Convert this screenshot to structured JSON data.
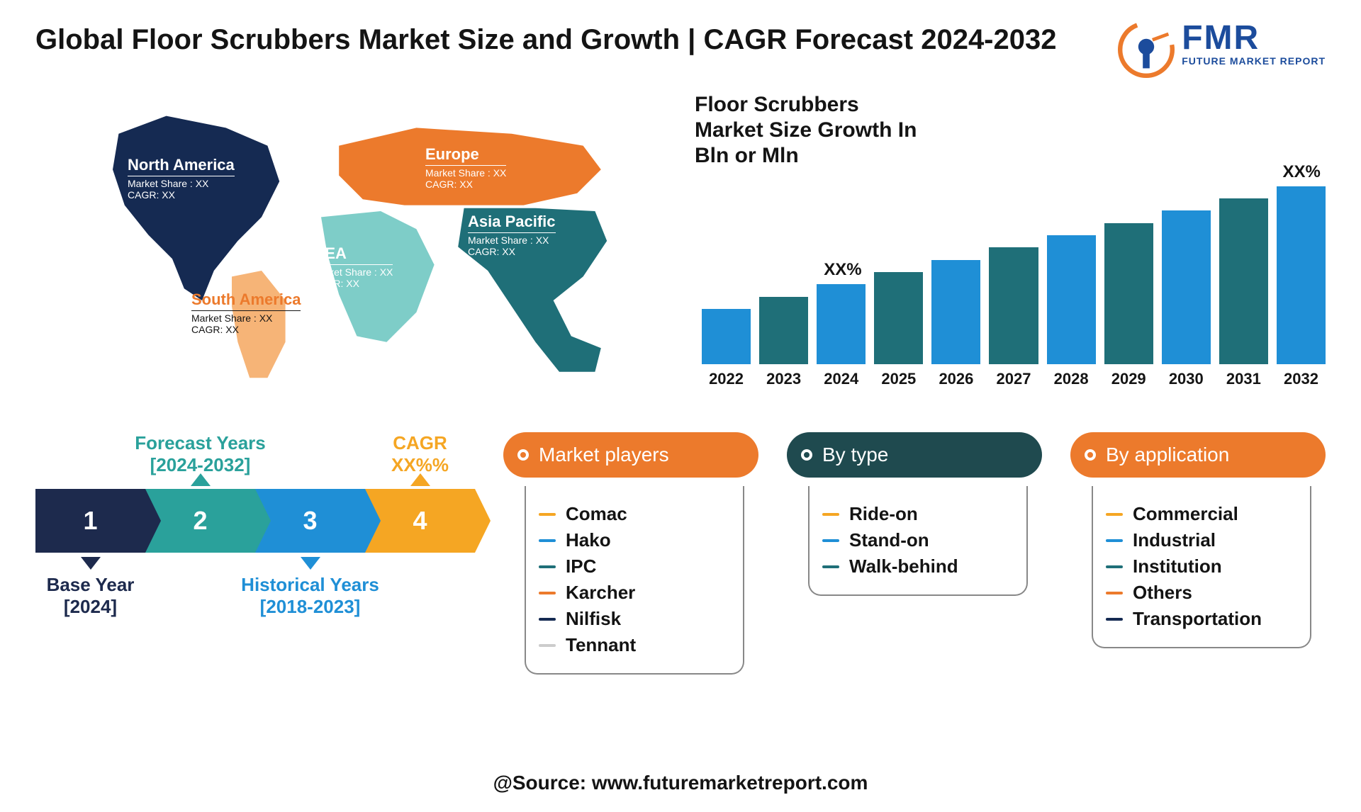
{
  "title": "Global Floor Scrubbers Market Size and Growth | CAGR Forecast 2024-2032",
  "logo": {
    "main": "FMR",
    "sub": "FUTURE MARKET REPORT"
  },
  "source": "@Source: www.futuremarketreport.com",
  "colors": {
    "navy": "#1d2a4d",
    "teal": "#2aa19b",
    "blue": "#1f8fd6",
    "amber": "#f5a623",
    "orange": "#ec7a2c",
    "mapNA": "#152a52",
    "mapSA": "#f6b477",
    "mapMEA": "#7ecdc8",
    "mapEU": "#ec7a2c",
    "mapAP": "#1f6f78",
    "barBlue": "#1f8fd6",
    "barTeal": "#1f6f78"
  },
  "map": {
    "regions": [
      {
        "name": "North America",
        "share": "Market Share : XX",
        "cagr": "CAGR: XX",
        "color": "#152a52"
      },
      {
        "name": "South America",
        "share": "Market Share : XX",
        "cagr": "CAGR: XX",
        "color": "#f6b477"
      },
      {
        "name": "MEA",
        "share": "Market Share : XX",
        "cagr": "CAGR: XX",
        "color": "#7ecdc8"
      },
      {
        "name": "Europe",
        "share": "Market Share : XX",
        "cagr": "CAGR: XX",
        "color": "#ec7a2c"
      },
      {
        "name": "Asia Pacific",
        "share": "Market Share : XX",
        "cagr": "CAGR: XX",
        "color": "#1f6f78"
      }
    ]
  },
  "chart": {
    "type": "bar",
    "title": "Floor Scrubbers\nMarket Size Growth In\nBln or Mln",
    "years": [
      "2022",
      "2023",
      "2024",
      "2025",
      "2026",
      "2027",
      "2028",
      "2029",
      "2030",
      "2031",
      "2032"
    ],
    "values": [
      90,
      110,
      130,
      150,
      170,
      190,
      210,
      230,
      250,
      270,
      290
    ],
    "ylim": [
      0,
      300
    ],
    "bar_colors": [
      "#1f8fd6",
      "#1f6f78",
      "#1f8fd6",
      "#1f6f78",
      "#1f8fd6",
      "#1f6f78",
      "#1f8fd6",
      "#1f6f78",
      "#1f8fd6",
      "#1f6f78",
      "#1f8fd6"
    ],
    "annotations": [
      {
        "year_index": 2,
        "text": "XX%"
      },
      {
        "year_index": 10,
        "text": "XX%"
      }
    ],
    "background_color": "#ffffff",
    "label_fontsize": 22,
    "title_fontsize": 30
  },
  "timeline": {
    "segments": [
      {
        "num": "1",
        "color": "#1d2a4d",
        "above": false,
        "below": true,
        "label": "Base Year\n[2024]",
        "label_color": "#1d2a4d"
      },
      {
        "num": "2",
        "color": "#2aa19b",
        "above": true,
        "below": false,
        "label": "Forecast Years\n[2024-2032]",
        "label_color": "#2aa19b"
      },
      {
        "num": "3",
        "color": "#1f8fd6",
        "above": false,
        "below": true,
        "label": "Historical Years\n[2018-2023]",
        "label_color": "#1f8fd6"
      },
      {
        "num": "4",
        "color": "#f5a623",
        "above": true,
        "below": false,
        "label": "CAGR\nXX%%",
        "label_color": "#f5a623"
      }
    ]
  },
  "columns": [
    {
      "heading": "Market players",
      "pill_color": "#ec7a2c",
      "items": [
        {
          "text": "Comac",
          "color": "#f5a623"
        },
        {
          "text": "Hako",
          "color": "#1f8fd6"
        },
        {
          "text": "IPC",
          "color": "#1f6f78"
        },
        {
          "text": "Karcher",
          "color": "#ec7a2c"
        },
        {
          "text": "Nilfisk",
          "color": "#152a52"
        },
        {
          "text": "Tennant",
          "color": "#cccccc"
        }
      ]
    },
    {
      "heading": "By type",
      "pill_color": "#1f4a4f",
      "items": [
        {
          "text": "Ride-on",
          "color": "#f5a623"
        },
        {
          "text": "Stand-on",
          "color": "#1f8fd6"
        },
        {
          "text": "Walk-behind",
          "color": "#1f6f78"
        }
      ]
    },
    {
      "heading": "By application",
      "pill_color": "#ec7a2c",
      "items": [
        {
          "text": "Commercial",
          "color": "#f5a623"
        },
        {
          "text": "Industrial",
          "color": "#1f8fd6"
        },
        {
          "text": "Institution",
          "color": "#1f6f78"
        },
        {
          "text": "Others",
          "color": "#ec7a2c"
        },
        {
          "text": "Transportation",
          "color": "#152a52"
        }
      ]
    }
  ]
}
